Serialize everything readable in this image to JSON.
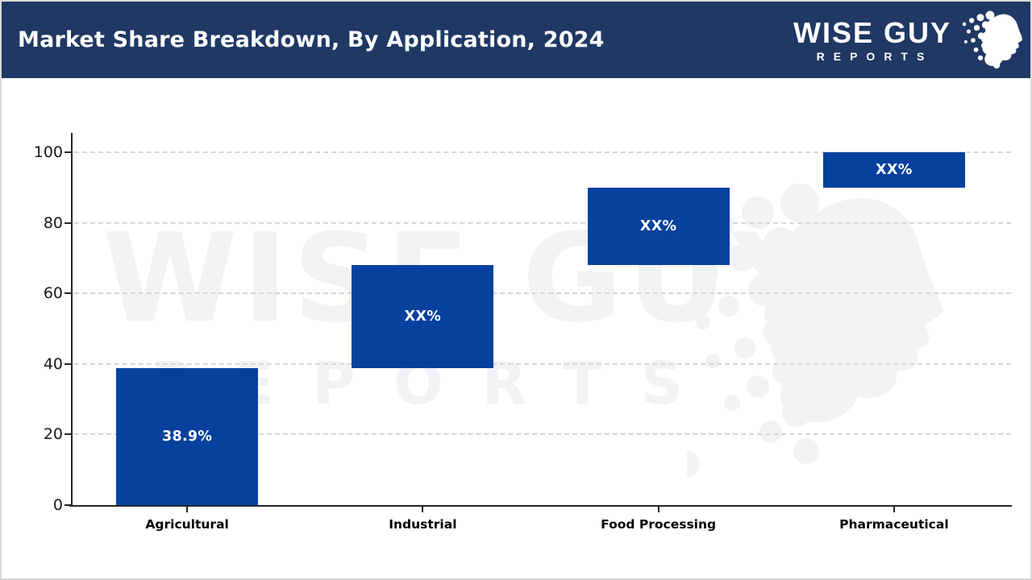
{
  "header": {
    "title": "Market Share Breakdown, By Application, 2024",
    "background_color": "#1f3864",
    "brand": {
      "line1": "WISE GUY",
      "line2": "REPORTS"
    }
  },
  "watermark": {
    "line1": "WISE GUY",
    "line2": "REPORTS",
    "color": "#f2f2f4"
  },
  "chart_data": {
    "type": "bar",
    "subtype": "stacked-waterfall-breakdown",
    "title": "Market Share Breakdown, By Application, 2024",
    "categories": [
      "Agricultural",
      "Industrial",
      "Food Processing",
      "Pharmaceutical"
    ],
    "segments": [
      {
        "category": "Agricultural",
        "start": 0,
        "end": 38.9,
        "label": "38.9%"
      },
      {
        "category": "Industrial",
        "start": 38.9,
        "end": 68,
        "label": "XX%"
      },
      {
        "category": "Food Processing",
        "start": 68,
        "end": 90,
        "label": "XX%"
      },
      {
        "category": "Pharmaceutical",
        "start": 90,
        "end": 100,
        "label": "XX%"
      }
    ],
    "xlabel": "",
    "ylabel": "",
    "yticks": [
      0,
      20,
      40,
      60,
      80,
      100
    ],
    "ylim": [
      0,
      105
    ],
    "grid": true,
    "grid_style": "dashed",
    "legend": false,
    "bar_color": "#06419d",
    "bar_label_color": "#ffffff"
  }
}
